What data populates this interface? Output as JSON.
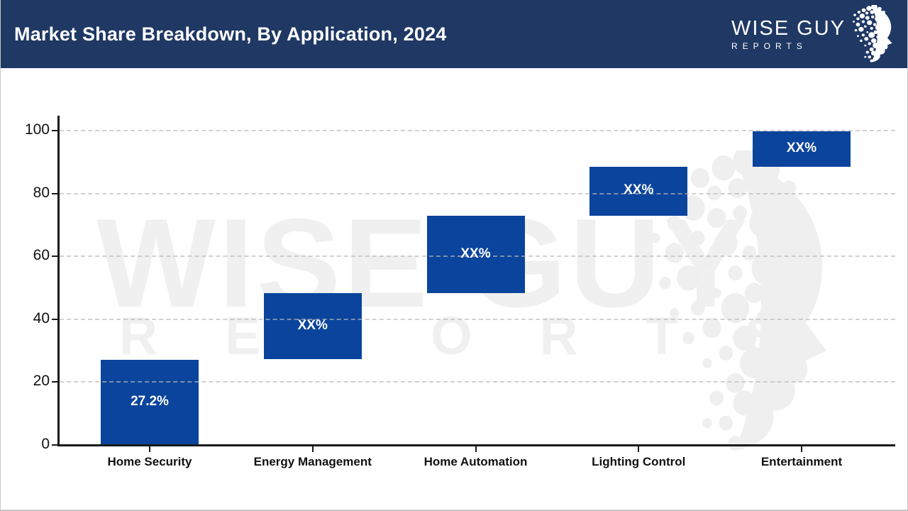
{
  "header": {
    "title": "Market Share Breakdown, By Application, 2024",
    "logo": {
      "line1": "WISE GUY",
      "line2": "REPORTS"
    }
  },
  "watermark": {
    "line1": "WISE GUY",
    "line2": "REPORTS"
  },
  "theme": {
    "header_bg": "#1f3864",
    "title_color": "#ffffff",
    "bar_color": "#0a449c",
    "axis_color": "#1a1a1a",
    "watermark_color": "#f0f0f0",
    "watermark_face_color": "#efefef"
  },
  "chart_data": {
    "type": "bar",
    "subtype": "waterfall",
    "title": "Market Share Breakdown, By Application, 2024",
    "categories": [
      "Home Security",
      "Energy Management",
      "Home Automation",
      "Lighting Control",
      "Entertainment"
    ],
    "segments": [
      {
        "category": "Home Security",
        "start": 0,
        "end": 27.2,
        "label": "27.2%"
      },
      {
        "category": "Energy Management",
        "start": 27.2,
        "end": 48.2,
        "label": "XX%"
      },
      {
        "category": "Home Automation",
        "start": 48.2,
        "end": 73.0,
        "label": "XX%"
      },
      {
        "category": "Lighting Control",
        "start": 73.0,
        "end": 88.5,
        "label": "XX%"
      },
      {
        "category": "Entertainment",
        "start": 88.5,
        "end": 99.8,
        "label": "XX%"
      }
    ],
    "yticks": [
      0,
      20,
      40,
      60,
      80,
      100
    ],
    "ylim": [
      0,
      104.5
    ],
    "xlabel": "",
    "ylabel": "",
    "grid": "horizontal-dashed",
    "legend": "none",
    "bar_color": "#0a449c"
  }
}
